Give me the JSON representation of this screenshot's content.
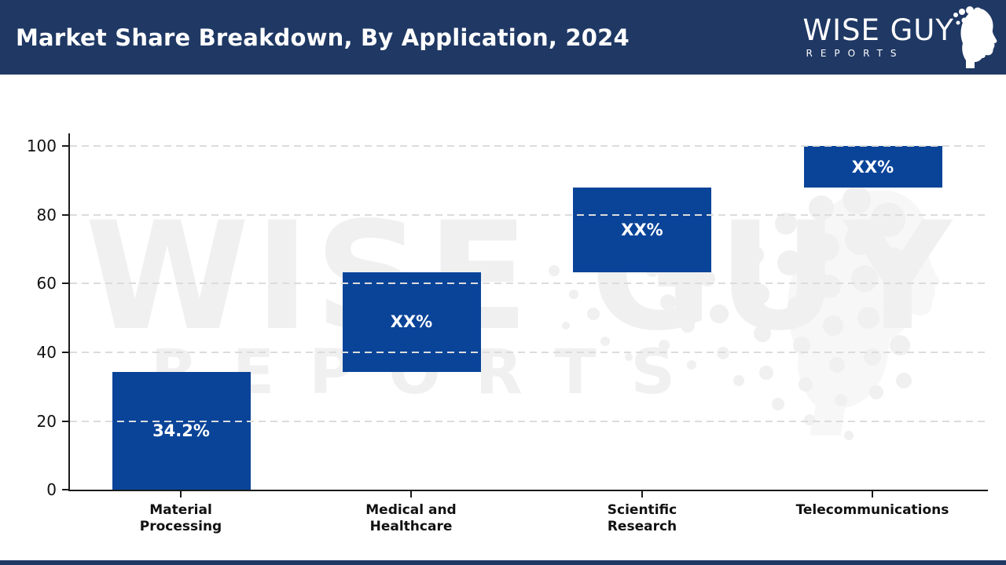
{
  "header": {
    "title": "Market Share Breakdown, By Application, 2024",
    "logo": {
      "line1": "WISE GUY",
      "line2": "REPORTS"
    }
  },
  "watermark": {
    "line1": "WISE GUY",
    "line2": "REPORTS"
  },
  "colors": {
    "header_bg": "#1f3864",
    "footer_bg": "#1f3864",
    "bar": "#0a4499",
    "grid": "#dcdcdc",
    "axis": "#1a1a1a",
    "watermark": "#f0f0f0",
    "title_text": "#ffffff",
    "bar_label_text": "#ffffff"
  },
  "chart_data": {
    "type": "bar",
    "subtype": "floating-waterfall",
    "title": "Market Share Breakdown, By Application, 2024",
    "xlabel": "",
    "ylabel": "",
    "ylim": [
      0,
      100
    ],
    "y_ticks": [
      "0",
      "20",
      "40",
      "60",
      "80",
      "100"
    ],
    "grid": "horizontal dashed, drawn over bars",
    "legend": "none",
    "categories": [
      "Material Processing",
      "Medical and Healthcare",
      "Scientific Research",
      "Telecommunications"
    ],
    "categories_lines": [
      [
        "Material",
        "Processing"
      ],
      [
        "Medical and",
        "Healthcare"
      ],
      [
        "Scientific",
        "Research"
      ],
      [
        "Telecommunications",
        ""
      ]
    ],
    "bars": [
      {
        "category": "Material Processing",
        "label": "34.2%",
        "start": 0,
        "end": 34.2
      },
      {
        "category": "Medical and Healthcare",
        "label": "XX%",
        "start": 34.2,
        "end": 63.4
      },
      {
        "category": "Scientific Research",
        "label": "XX%",
        "start": 63.4,
        "end": 87.9
      },
      {
        "category": "Telecommunications",
        "label": "XX%",
        "start": 87.9,
        "end": 100
      }
    ]
  }
}
